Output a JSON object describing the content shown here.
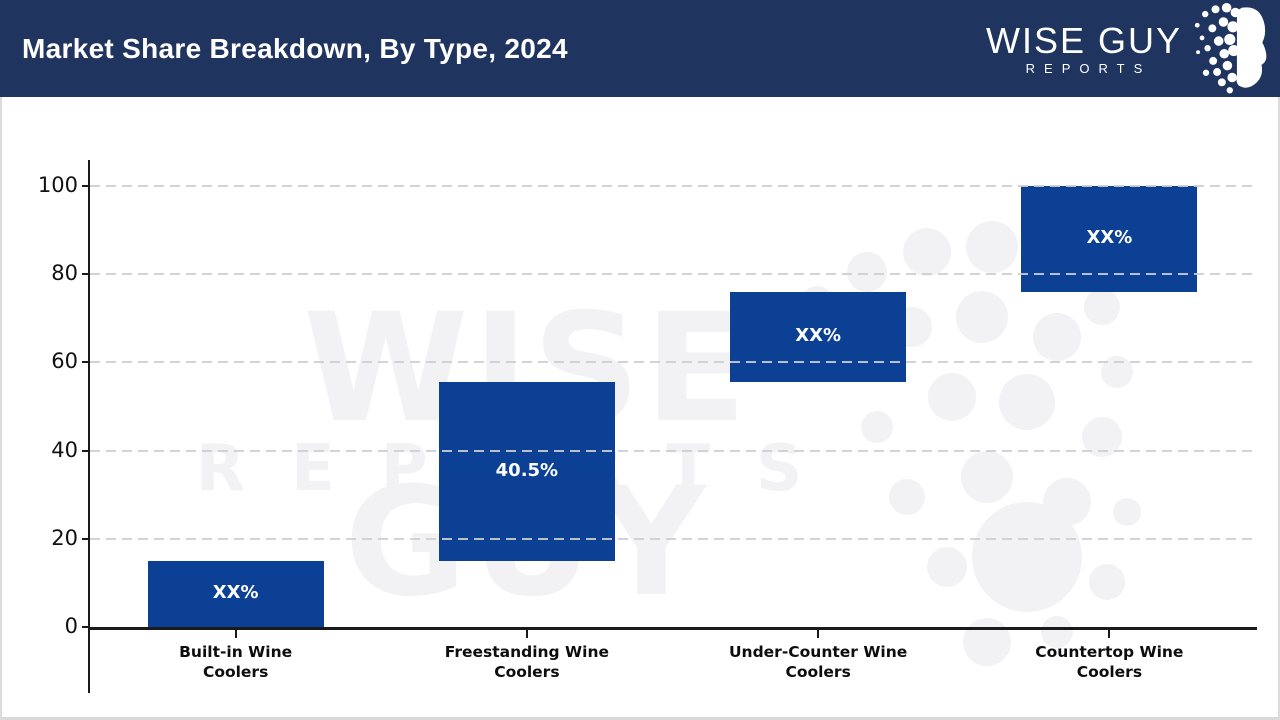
{
  "header": {
    "title": "Market Share Breakdown, By Type, 2024",
    "logo": {
      "line1": "WISE GUY",
      "line2": "REPORTS"
    }
  },
  "watermark": {
    "line1": "WISE GUY",
    "line2": "REPORTS"
  },
  "colors": {
    "header_bg": "#1f3560",
    "bar": "#0c4094",
    "bar_label": "#ffffff",
    "grid": "#d9d9d9",
    "axis": "#1a1a1a",
    "watermark": "#f2f2f4"
  },
  "chart_data": {
    "type": "bar",
    "subtype": "floating-segment (waterfall style market share)",
    "title": "Market Share Breakdown, By Type, 2024",
    "categories": [
      "Built-in Wine\nCoolers",
      "Freestanding Wine\nCoolers",
      "Under-Counter Wine\nCoolers",
      "Countertop Wine\nCoolers"
    ],
    "segments": [
      {
        "category": "Built-in Wine Coolers",
        "start": 0,
        "end": 15,
        "label": "XX%"
      },
      {
        "category": "Freestanding Wine Coolers",
        "start": 15,
        "end": 55.5,
        "label": "40.5%",
        "value": 40.5
      },
      {
        "category": "Under-Counter Wine Coolers",
        "start": 55.5,
        "end": 76,
        "label": "XX%"
      },
      {
        "category": "Countertop Wine Coolers",
        "start": 76,
        "end": 100,
        "label": "XX%"
      }
    ],
    "xlabel": "",
    "ylabel": "",
    "ylim": [
      0,
      100
    ],
    "yticks": [
      0,
      20,
      40,
      60,
      80,
      100
    ],
    "grid": true,
    "grid_style": "dashed",
    "legend": false,
    "bar_color": "#0c4094",
    "bar_label_color": "#ffffff"
  }
}
